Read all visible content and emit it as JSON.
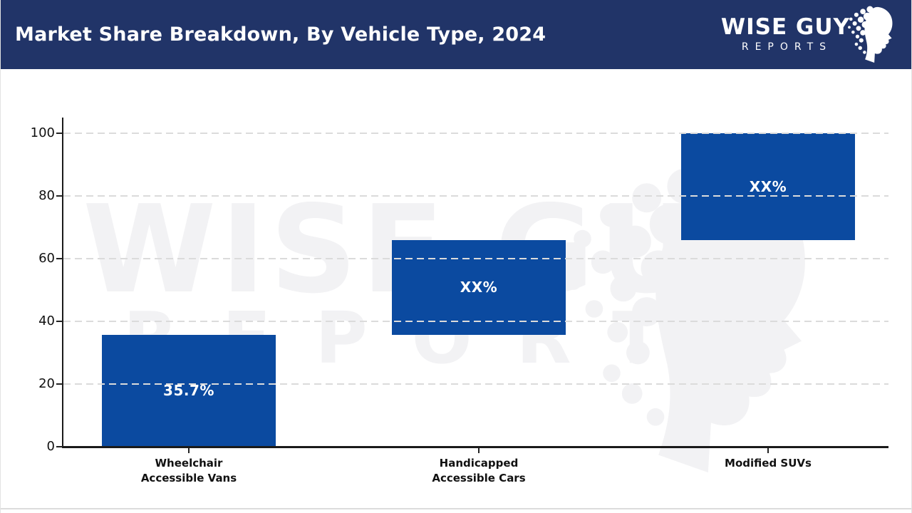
{
  "header": {
    "title": "Market Share Breakdown, By Vehicle Type, 2024",
    "bg_color": "#213468",
    "logo": {
      "line1": "WISE GUY",
      "line2": "REPORTS",
      "face_icon": "dotted-head-profile-icon"
    }
  },
  "watermark": {
    "line1": "WISE GUY",
    "line2": "REPORTS",
    "face_icon": "dotted-head-profile-icon",
    "color": "#f2f2f4"
  },
  "chart_data": {
    "type": "bar",
    "variant": "floating-waterfall",
    "title": "Market Share Breakdown, By Vehicle Type, 2024",
    "categories": [
      "Wheelchair\nAccessible Vans",
      "Handicapped\nAccessible Cars",
      "Modified SUVs"
    ],
    "segments": [
      {
        "category": "Wheelchair\nAccessible Vans",
        "start": 0,
        "end": 35.7,
        "label": "35.7%"
      },
      {
        "category": "Handicapped\nAccessible Cars",
        "start": 35.7,
        "end": 66,
        "label": "XX%"
      },
      {
        "category": "Modified SUVs",
        "start": 66,
        "end": 100,
        "label": "XX%"
      }
    ],
    "yticks": [
      0,
      20,
      40,
      60,
      80,
      100
    ],
    "ylim": [
      0,
      105
    ],
    "xlabel": "",
    "ylabel": "",
    "grid": {
      "horizontal": true,
      "style": "dashed",
      "color": "#dbdbdb",
      "drawn_over_bars": true
    },
    "legend": "none",
    "bar_color": "#0b4aa0",
    "bar_label_color": "#ffffff",
    "axis_color": "#1a1a1a",
    "tick_label_color": "#111111"
  },
  "footer": {
    "divider_color": "#dcdcdc"
  }
}
